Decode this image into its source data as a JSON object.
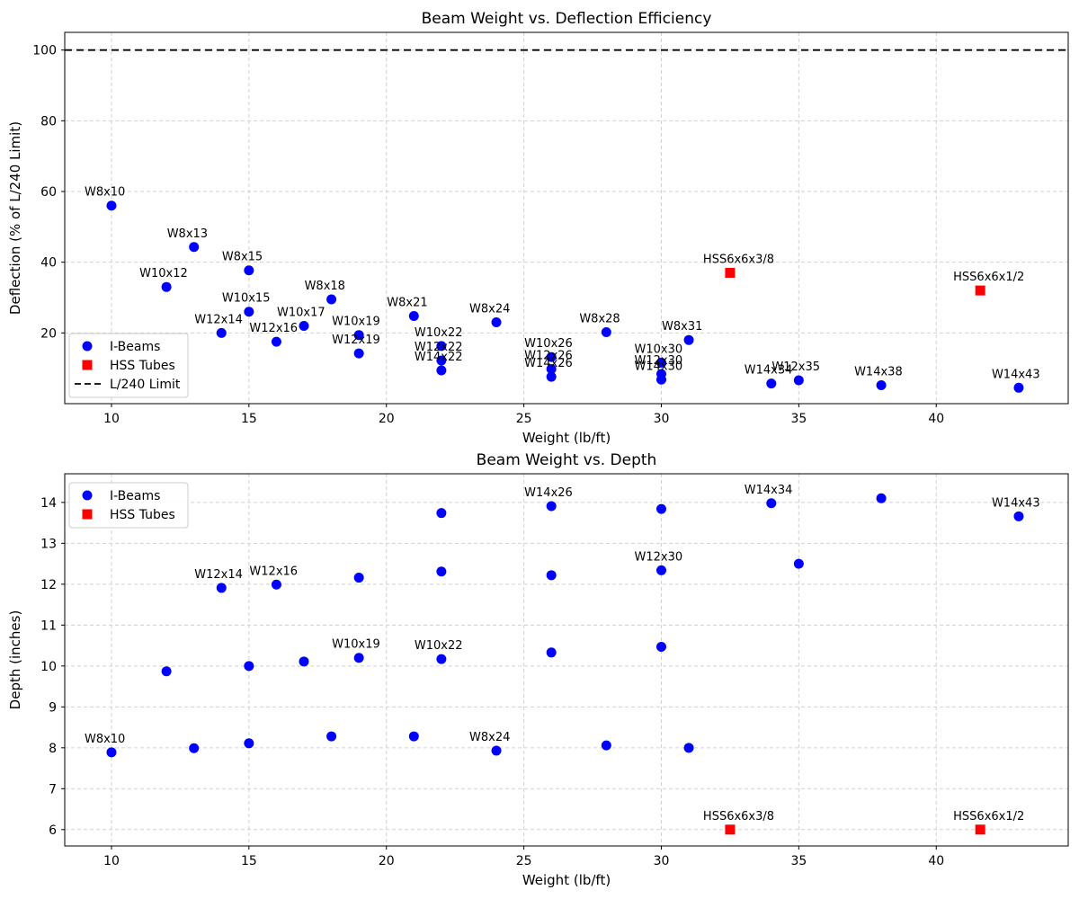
{
  "figure": {
    "background": "#ffffff",
    "colors": {
      "ibeam": "#0000ff",
      "hss": "#ff0000",
      "limit_line": "#000000",
      "grid": "#c9c9c9",
      "spine": "#000000",
      "text": "#000000"
    }
  },
  "chart_data": [
    {
      "type": "scatter",
      "title": "Beam Weight vs. Deflection Efficiency",
      "xlabel": "Weight (lb/ft)",
      "ylabel": "Deflection (% of L/240 Limit)",
      "xlim": [
        8.3,
        44.8
      ],
      "ylim": [
        0,
        105
      ],
      "xticks": [
        10,
        15,
        20,
        25,
        30,
        35,
        40
      ],
      "yticks": [
        20,
        40,
        60,
        80,
        100
      ],
      "grid": true,
      "limit_line": {
        "y": 100,
        "label": "L/240 Limit"
      },
      "legend": {
        "position": "lower-left",
        "items": [
          {
            "label": "I-Beams",
            "marker": "circle",
            "color": "#0000ff"
          },
          {
            "label": "HSS Tubes",
            "marker": "square",
            "color": "#ff0000"
          },
          {
            "label": "L/240 Limit",
            "marker": "dashed-line",
            "color": "#000000"
          }
        ]
      },
      "series": [
        {
          "name": "I-Beams",
          "marker": "circle",
          "color": "#0000ff",
          "points": [
            {
              "label": "W8x10",
              "x": 10,
              "y": 56.0,
              "show_label": true
            },
            {
              "label": "W10x12",
              "x": 12,
              "y": 33.0,
              "show_label": true
            },
            {
              "label": "W8x13",
              "x": 13,
              "y": 44.3,
              "show_label": true
            },
            {
              "label": "W12x14",
              "x": 14,
              "y": 20.0,
              "show_label": true
            },
            {
              "label": "W8x15",
              "x": 15,
              "y": 37.7,
              "show_label": true
            },
            {
              "label": "W10x15",
              "x": 15,
              "y": 26.0,
              "show_label": true
            },
            {
              "label": "W12x16",
              "x": 16,
              "y": 17.5,
              "show_label": true
            },
            {
              "label": "W10x17",
              "x": 17,
              "y": 22.0,
              "show_label": true
            },
            {
              "label": "W8x18",
              "x": 18,
              "y": 29.5,
              "show_label": true
            },
            {
              "label": "W10x19",
              "x": 19,
              "y": 19.4,
              "show_label": true
            },
            {
              "label": "W12x19",
              "x": 19,
              "y": 14.2,
              "show_label": true
            },
            {
              "label": "W8x21",
              "x": 21,
              "y": 24.8,
              "show_label": true
            },
            {
              "label": "W10x22",
              "x": 22,
              "y": 16.3,
              "show_label": true
            },
            {
              "label": "W12x22",
              "x": 22,
              "y": 12.2,
              "show_label": true
            },
            {
              "label": "W14x22",
              "x": 22,
              "y": 9.4,
              "show_label": true
            },
            {
              "label": "W8x24",
              "x": 24,
              "y": 23.0,
              "show_label": true
            },
            {
              "label": "W10x26",
              "x": 26,
              "y": 13.2,
              "show_label": true
            },
            {
              "label": "W12x26",
              "x": 26,
              "y": 9.8,
              "show_label": true
            },
            {
              "label": "W14x26",
              "x": 26,
              "y": 7.6,
              "show_label": true
            },
            {
              "label": "W8x28",
              "x": 28,
              "y": 20.2,
              "show_label": true
            },
            {
              "label": "W10x30",
              "x": 30,
              "y": 11.6,
              "show_label": true
            },
            {
              "label": "W12x30",
              "x": 30,
              "y": 8.4,
              "show_label": true
            },
            {
              "label": "W14x30",
              "x": 30,
              "y": 6.8,
              "show_label": true
            },
            {
              "label": "W8x31",
              "x": 31,
              "y": 18.0,
              "show_label": true
            },
            {
              "label": "W14x34",
              "x": 34,
              "y": 5.7,
              "show_label": true
            },
            {
              "label": "W12x35",
              "x": 35,
              "y": 6.6,
              "show_label": true
            },
            {
              "label": "W14x38",
              "x": 38,
              "y": 5.2,
              "show_label": true
            },
            {
              "label": "W14x43",
              "x": 43,
              "y": 4.5,
              "show_label": true
            }
          ]
        },
        {
          "name": "HSS Tubes",
          "marker": "square",
          "color": "#ff0000",
          "points": [
            {
              "label": "HSS6x6x3/8",
              "x": 32.5,
              "y": 37.0,
              "show_label": true
            },
            {
              "label": "HSS6x6x1/2",
              "x": 41.6,
              "y": 32.0,
              "show_label": true
            }
          ]
        }
      ]
    },
    {
      "type": "scatter",
      "title": "Beam Weight vs. Depth",
      "xlabel": "Weight (lb/ft)",
      "ylabel": "Depth (inches)",
      "xlim": [
        8.3,
        44.8
      ],
      "ylim": [
        5.6,
        14.7
      ],
      "xticks": [
        10,
        15,
        20,
        25,
        30,
        35,
        40
      ],
      "yticks": [
        6,
        7,
        8,
        9,
        10,
        11,
        12,
        13,
        14
      ],
      "grid": true,
      "limit_line": null,
      "legend": {
        "position": "upper-left",
        "items": [
          {
            "label": "I-Beams",
            "marker": "circle",
            "color": "#0000ff"
          },
          {
            "label": "HSS Tubes",
            "marker": "square",
            "color": "#ff0000"
          }
        ]
      },
      "series": [
        {
          "name": "I-Beams",
          "marker": "circle",
          "color": "#0000ff",
          "points": [
            {
              "label": "W8x10",
              "x": 10,
              "y": 7.89,
              "show_label": true
            },
            {
              "label": "W10x12",
              "x": 12,
              "y": 9.87,
              "show_label": false
            },
            {
              "label": "W8x13",
              "x": 13,
              "y": 7.99,
              "show_label": false
            },
            {
              "label": "W12x14",
              "x": 14,
              "y": 11.91,
              "show_label": true
            },
            {
              "label": "W8x15",
              "x": 15,
              "y": 8.11,
              "show_label": false
            },
            {
              "label": "W10x15",
              "x": 15,
              "y": 10.0,
              "show_label": false
            },
            {
              "label": "W12x16",
              "x": 16,
              "y": 11.99,
              "show_label": true
            },
            {
              "label": "W10x17",
              "x": 17,
              "y": 10.11,
              "show_label": false
            },
            {
              "label": "W8x18",
              "x": 18,
              "y": 8.28,
              "show_label": false
            },
            {
              "label": "W10x19",
              "x": 19,
              "y": 10.2,
              "show_label": true
            },
            {
              "label": "W12x19",
              "x": 19,
              "y": 12.16,
              "show_label": false
            },
            {
              "label": "W8x21",
              "x": 21,
              "y": 8.28,
              "show_label": false
            },
            {
              "label": "W10x22",
              "x": 22,
              "y": 10.17,
              "show_label": true
            },
            {
              "label": "W12x22",
              "x": 22,
              "y": 12.31,
              "show_label": false
            },
            {
              "label": "W14x22",
              "x": 22,
              "y": 13.74,
              "show_label": false
            },
            {
              "label": "W8x24",
              "x": 24,
              "y": 7.93,
              "show_label": true
            },
            {
              "label": "W10x26",
              "x": 26,
              "y": 10.33,
              "show_label": false
            },
            {
              "label": "W12x26",
              "x": 26,
              "y": 12.22,
              "show_label": false
            },
            {
              "label": "W14x26",
              "x": 26,
              "y": 13.91,
              "show_label": true
            },
            {
              "label": "W8x28",
              "x": 28,
              "y": 8.06,
              "show_label": false
            },
            {
              "label": "W10x30",
              "x": 30,
              "y": 10.47,
              "show_label": false
            },
            {
              "label": "W12x30",
              "x": 30,
              "y": 12.34,
              "show_label": true
            },
            {
              "label": "W14x30",
              "x": 30,
              "y": 13.84,
              "show_label": false
            },
            {
              "label": "W8x31",
              "x": 31,
              "y": 8.0,
              "show_label": false
            },
            {
              "label": "W14x34",
              "x": 34,
              "y": 13.98,
              "show_label": true
            },
            {
              "label": "W12x35",
              "x": 35,
              "y": 12.5,
              "show_label": false
            },
            {
              "label": "W14x38",
              "x": 38,
              "y": 14.1,
              "show_label": false
            },
            {
              "label": "W14x43",
              "x": 43,
              "y": 13.66,
              "show_label": true
            }
          ]
        },
        {
          "name": "HSS Tubes",
          "marker": "square",
          "color": "#ff0000",
          "points": [
            {
              "label": "HSS6x6x3/8",
              "x": 32.5,
              "y": 6.0,
              "show_label": true
            },
            {
              "label": "HSS6x6x1/2",
              "x": 41.6,
              "y": 6.0,
              "show_label": true
            }
          ]
        }
      ]
    }
  ]
}
